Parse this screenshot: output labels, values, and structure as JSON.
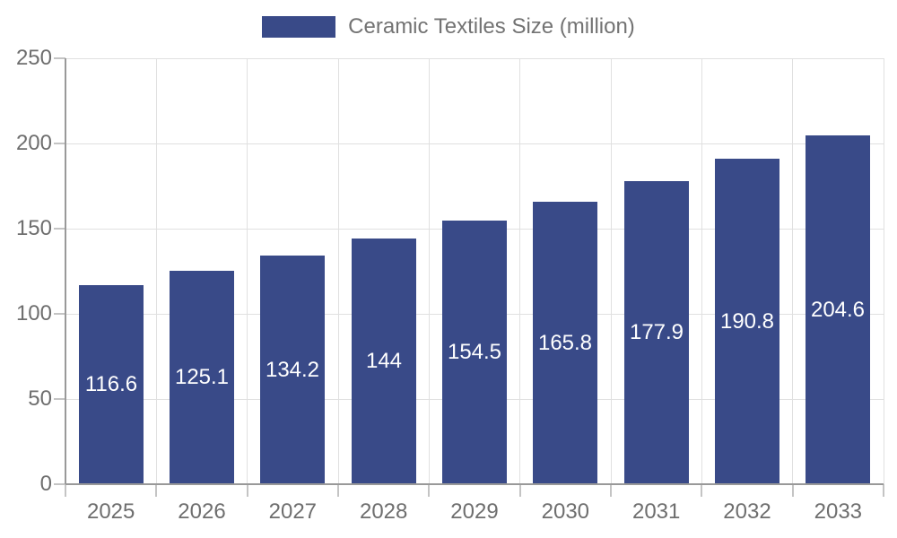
{
  "legend": {
    "label": "Ceramic Textiles Size (million)"
  },
  "chart_data": {
    "type": "bar",
    "title": "Ceramic Textiles Size (million)",
    "series_name": "Ceramic Textiles Size (million)",
    "categories": [
      "2025",
      "2026",
      "2027",
      "2028",
      "2029",
      "2030",
      "2031",
      "2032",
      "2033"
    ],
    "values": [
      116.6,
      125.1,
      134.2,
      144,
      154.5,
      165.8,
      177.9,
      190.8,
      204.6
    ],
    "value_labels": [
      "116.6",
      "125.1",
      "134.2",
      "144",
      "154.5",
      "165.8",
      "177.9",
      "190.8",
      "204.6"
    ],
    "xlabel": "",
    "ylabel": "",
    "ylim": [
      0,
      250
    ],
    "yticks": [
      0,
      50,
      100,
      150,
      200,
      250
    ],
    "grid": true,
    "legend_position": "top-center",
    "colors": {
      "bar": "#394A88",
      "value_label": "#ffffff",
      "axis_text": "#6e6e6e",
      "legend_text": "#737373",
      "gridline": "#e0e0e0",
      "axis_line": "#999999",
      "tick": "#c4c4c4",
      "background": "#ffffff"
    }
  }
}
